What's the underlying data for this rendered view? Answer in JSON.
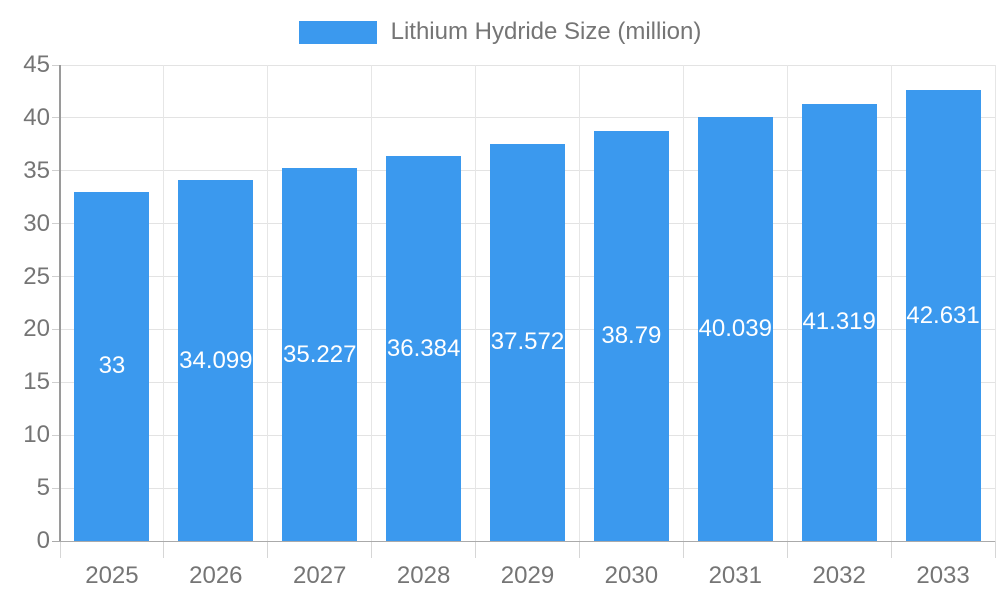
{
  "chart_data": {
    "type": "bar",
    "title": "",
    "legend": {
      "label": "Lithium Hydride Size (million)",
      "position": "top"
    },
    "categories": [
      "2025",
      "2026",
      "2027",
      "2028",
      "2029",
      "2030",
      "2031",
      "2032",
      "2033"
    ],
    "series": [
      {
        "name": "Lithium Hydride Size (million)",
        "values": [
          33,
          34.099,
          35.227,
          36.384,
          37.572,
          38.79,
          40.039,
          41.319,
          42.631
        ],
        "value_labels": [
          "33",
          "34.099",
          "35.227",
          "36.384",
          "37.572",
          "38.79",
          "40.039",
          "41.319",
          "42.631"
        ]
      }
    ],
    "xlabel": "",
    "ylabel": "",
    "ylim": [
      0,
      45
    ],
    "yticks": [
      0,
      5,
      10,
      15,
      20,
      25,
      30,
      35,
      40,
      45
    ],
    "grid": true,
    "bar_label_position": "center",
    "colors": {
      "bar": "#3B99EE",
      "axis_line": "#9a9a9a",
      "gridline": "#e3e3e3",
      "tick_label": "#757575",
      "bar_label": "#ffffff",
      "legend_text": "#757575"
    }
  }
}
